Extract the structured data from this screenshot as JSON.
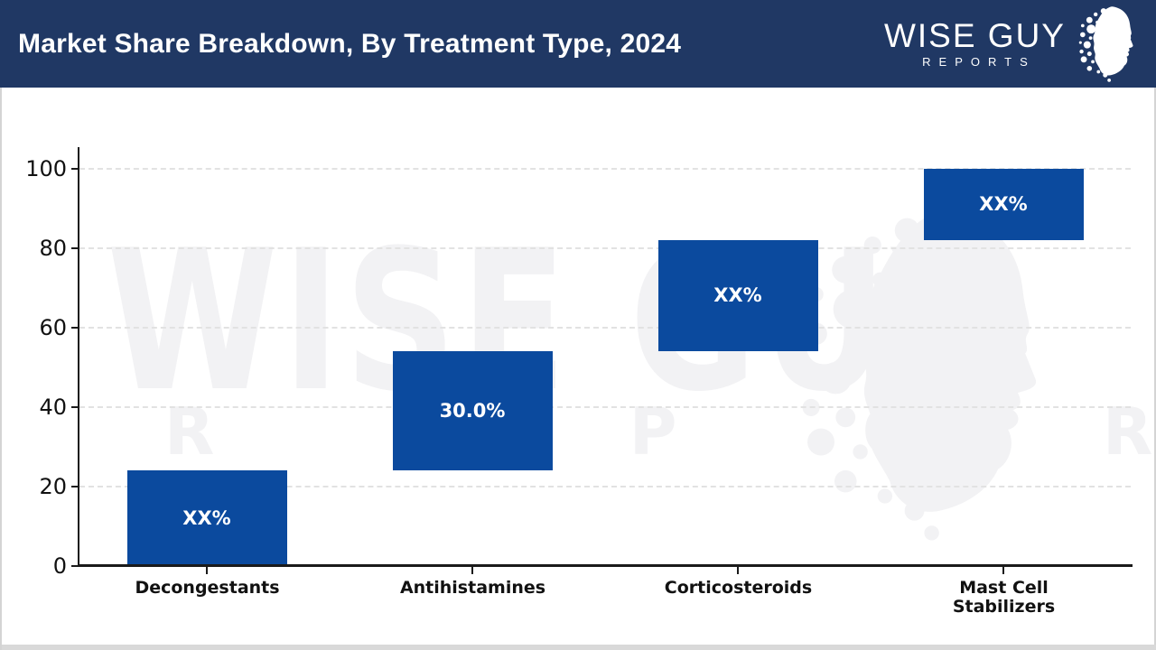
{
  "header": {
    "title": "Market Share Breakdown, By Treatment Type, 2024",
    "logo": {
      "line1": "WISE GUY",
      "line2": "REPORTS"
    }
  },
  "watermark": {
    "line1": "WISE GUY",
    "line2": "R E P O R T S"
  },
  "colors": {
    "header_bg": "#203864",
    "bar": "#0b4a9e",
    "gridline": "#e2e2e2",
    "watermark": "#f2f2f4",
    "footer_strip": "#d9d9d9",
    "axis": "#1a1a1a"
  },
  "chart_data": {
    "type": "bar",
    "subtype": "waterfall-stepped",
    "title": "Market Share Breakdown, By Treatment Type, 2024",
    "categories": [
      "Decongestants",
      "Antihistamines",
      "Corticosteroids",
      "Mast Cell Stabilizers"
    ],
    "segments": [
      {
        "category": "Decongestants",
        "start": 0,
        "end": 24,
        "label": "XX%"
      },
      {
        "category": "Antihistamines",
        "start": 24,
        "end": 54,
        "label": "30.0%"
      },
      {
        "category": "Corticosteroids",
        "start": 54,
        "end": 82,
        "label": "XX%"
      },
      {
        "category": "Mast Cell Stabilizers",
        "start": 82,
        "end": 100,
        "label": "XX%"
      }
    ],
    "y_ticks": [
      0,
      20,
      40,
      60,
      80,
      100
    ],
    "ylim": [
      0,
      100
    ],
    "xlabel": "",
    "ylabel": "",
    "grid": "horizontal-dashed",
    "legend": "none",
    "bar_color": "#0b4a9e",
    "bar_label_color": "#ffffff"
  }
}
